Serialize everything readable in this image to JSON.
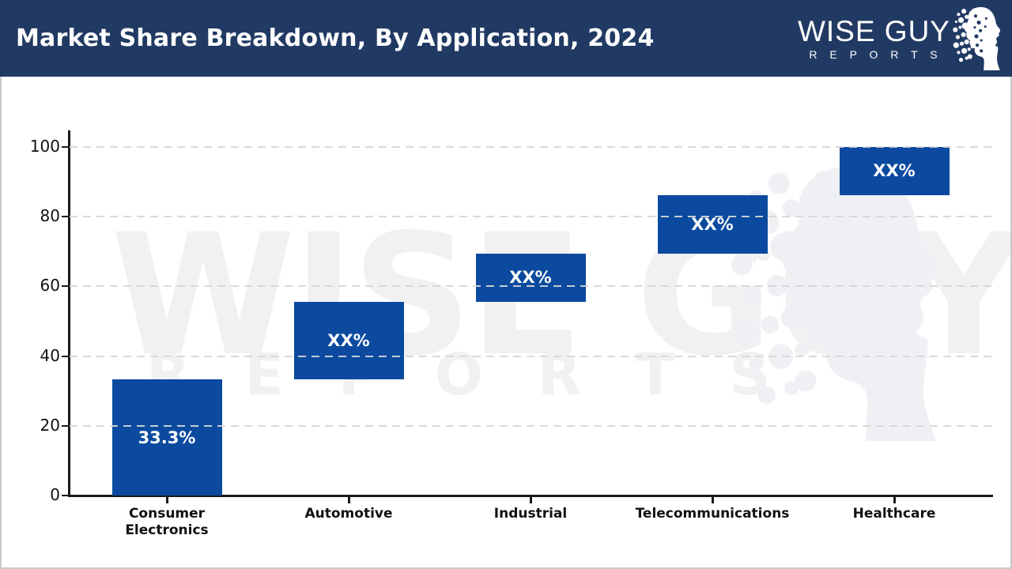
{
  "header": {
    "title": "Market Share Breakdown, By Application, 2024",
    "bg_color": "#213a63",
    "logo": {
      "line1": "WISE GUY",
      "line2": "R E P O R T S"
    }
  },
  "watermark": {
    "line1": "WISE GUY",
    "line2": "R E P O R T S"
  },
  "chart_data": {
    "type": "bar",
    "subtype": "waterfall-cumulative",
    "title": "Market Share Breakdown, By Application, 2024",
    "categories": [
      "Consumer Electronics",
      "Automotive",
      "Industrial",
      "Telecommunications",
      "Healthcare"
    ],
    "segments": [
      {
        "category": "Consumer Electronics",
        "start": 0,
        "end": 33.3,
        "label": "33.3%"
      },
      {
        "category": "Automotive",
        "start": 33.3,
        "end": 55.6,
        "label": "XX%"
      },
      {
        "category": "Industrial",
        "start": 55.6,
        "end": 69.4,
        "label": "XX%"
      },
      {
        "category": "Telecommunications",
        "start": 69.4,
        "end": 86.2,
        "label": "XX%"
      },
      {
        "category": "Healthcare",
        "start": 86.2,
        "end": 100,
        "label": "XX%"
      }
    ],
    "y_ticks": [
      0,
      20,
      40,
      60,
      80,
      100
    ],
    "ylim": [
      0,
      100
    ],
    "xlabel": "",
    "ylabel": "",
    "legend": "none",
    "grid": "horizontal-dashed",
    "bar_color": "#0b4a9f",
    "bar_label_color": "#ffffff",
    "grid_color": "#d6d6d6",
    "axis_color": "#1a1a1a"
  }
}
